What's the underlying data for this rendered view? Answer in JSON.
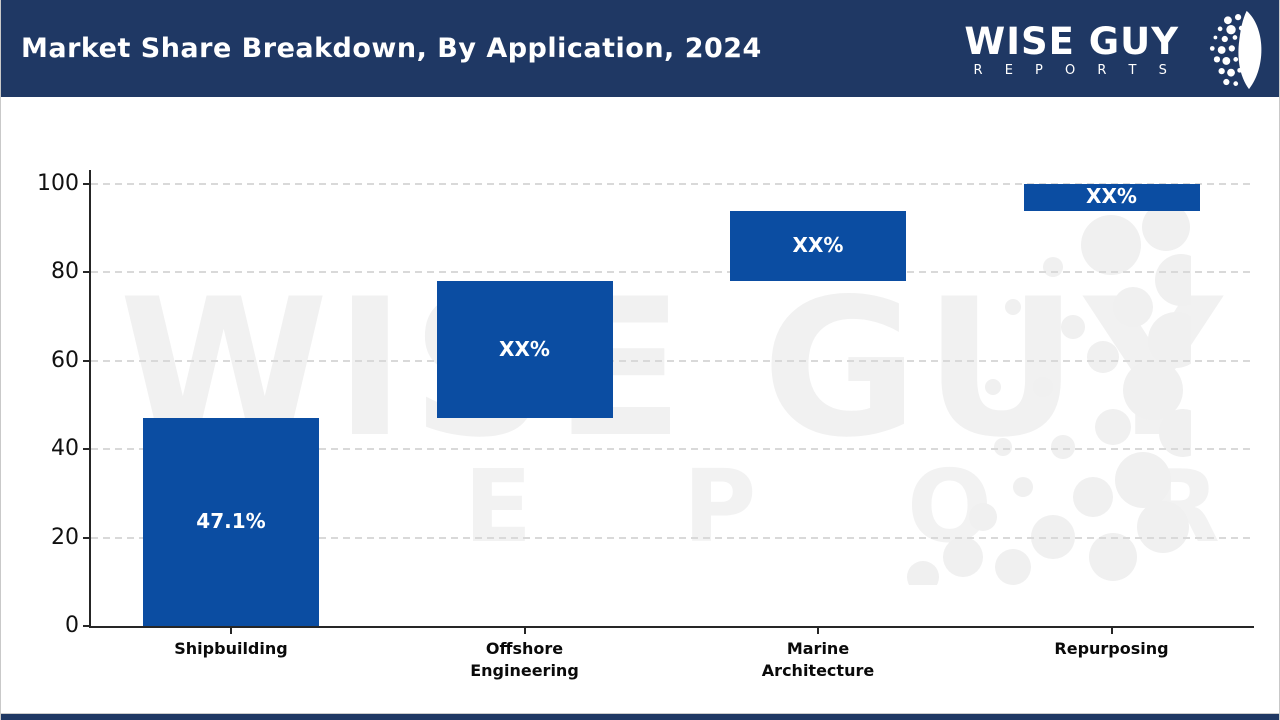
{
  "header": {
    "title": "Market Share Breakdown, By Application, 2024",
    "logo": {
      "primary": "WISE GUY",
      "secondary": "R E P O R T S"
    }
  },
  "watermark": {
    "primary": "WISE GUY",
    "secondary": "R E P O R T S"
  },
  "chart_data": {
    "type": "bar",
    "variant": "floating-waterfall",
    "title": "Market Share Breakdown, By Application, 2024",
    "categories": [
      "Shipbuilding",
      "Offshore\nEngineering",
      "Marine\nArchitecture",
      "Repurposing"
    ],
    "segments": [
      {
        "category": "Shipbuilding",
        "start": 0,
        "end": 47.1,
        "label": "47.1%"
      },
      {
        "category": "Offshore Engineering",
        "start": 47.1,
        "end": 78,
        "label": "XX%"
      },
      {
        "category": "Marine Architecture",
        "start": 78,
        "end": 94,
        "label": "XX%"
      },
      {
        "category": "Repurposing",
        "start": 94,
        "end": 100,
        "label": "XX%"
      }
    ],
    "yticks": [
      0,
      20,
      40,
      60,
      80,
      100
    ],
    "ylim": [
      0,
      103
    ],
    "grid": {
      "axis": "y",
      "style": "dashed"
    },
    "legend": null,
    "bar_color": "#0b4da2",
    "bar_label_color": "#ffffff"
  },
  "colors": {
    "header_bg": "#1f3864",
    "footer_bg": "#1f3864",
    "axis": "#262626",
    "grid": "#d9d9d9",
    "tick_text": "#111111",
    "watermark": "#f0f0f0"
  }
}
